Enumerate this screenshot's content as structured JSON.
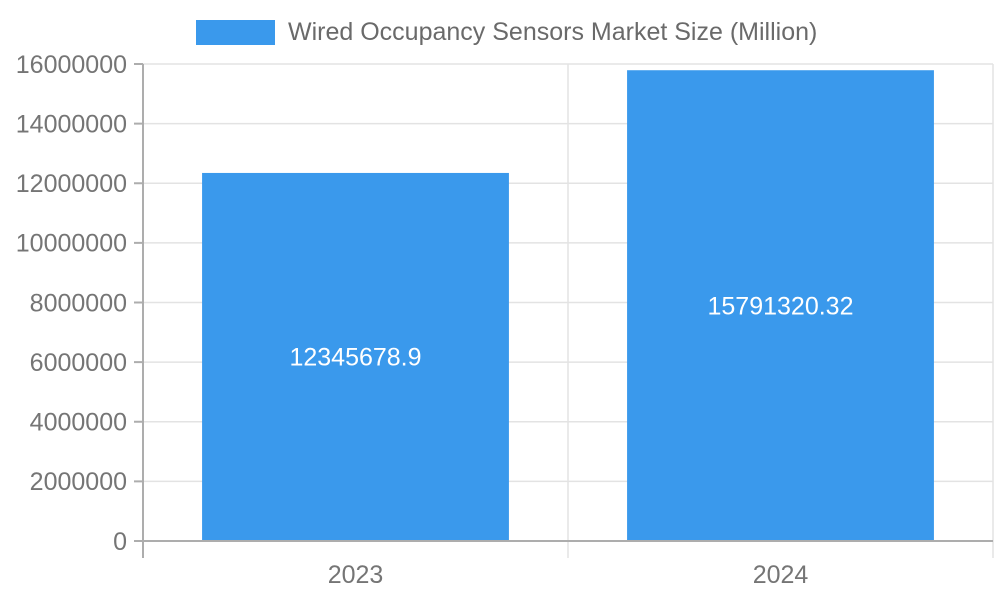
{
  "legend": {
    "label": "Wired Occupancy Sensors Market Size (Million)"
  },
  "colors": {
    "bar": "#3A99EC",
    "bar_label": "#FFFFFF",
    "tick_label": "#757575",
    "legend_text": "#6A6A6A",
    "gridline": "#E3E3E3",
    "axis_line": "#ADADAD",
    "background": "#FFFFFF"
  },
  "chart_data": {
    "type": "bar",
    "title": "Wired Occupancy Sensors Market Size (Million)",
    "categories": [
      "2023",
      "2024"
    ],
    "series": [
      {
        "name": "Wired Occupancy Sensors Market Size (Million)",
        "values": [
          12345678.9,
          15791320.32
        ]
      }
    ],
    "data_labels": [
      "12345678.9",
      "15791320.32"
    ],
    "xlabel": "",
    "ylabel": "",
    "ylim": [
      0,
      16000000
    ],
    "ytick_step": 2000000,
    "ytick_labels": [
      "0",
      "2000000",
      "4000000",
      "6000000",
      "8000000",
      "10000000",
      "12000000",
      "14000000",
      "16000000"
    ],
    "grid": true,
    "legend_position": "top"
  }
}
